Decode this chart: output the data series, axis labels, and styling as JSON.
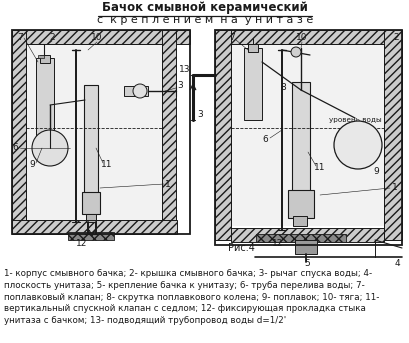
{
  "title_line1": "Бачок смывной керамический",
  "title_line2": "с  к р е п л е н и е м  н а  у н и т а з е",
  "fig_label": "Рис.4",
  "caption": "1- корпус смывного бачка; 2- крышка смывного бачка; 3- рычаг спуска воды; 4-\nплоскость унитаза; 5- крепление бачка к унитазу; 6- труба перелива воды; 7-\nпоплавковый клапан; 8- скрутка поплавкового колена; 9- поплавок; 10- тяга; 11-\nвертикальный спускной клапан с седлом; 12- фиксирующая прокладка стыка\nунитаза с бачком; 13- подводящий трубопровод воды d=1/2'",
  "water_level_label": "уровень воды",
  "bg_color": "#ffffff",
  "line_color": "#1a1a1a",
  "hatch_color": "#555555",
  "title_fontsize": 8.5,
  "label_fontsize": 6.5,
  "caption_fontsize": 6.3
}
